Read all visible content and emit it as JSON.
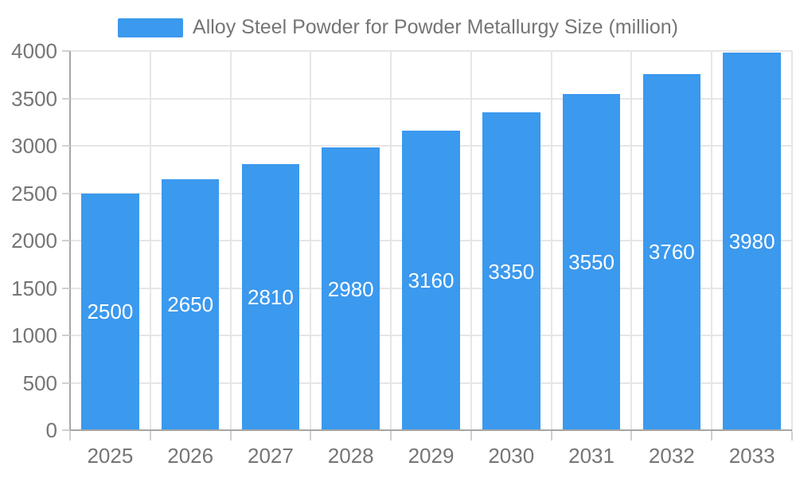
{
  "chart_data": {
    "type": "bar",
    "legend_label": "Alloy Steel Powder for Powder Metallurgy Size (million)",
    "categories": [
      "2025",
      "2026",
      "2027",
      "2028",
      "2029",
      "2030",
      "2031",
      "2032",
      "2033"
    ],
    "values": [
      2500,
      2650,
      2810,
      2980,
      3160,
      3350,
      3550,
      3760,
      3980
    ],
    "xlabel": "",
    "ylabel": "",
    "ylim": [
      0,
      4000
    ],
    "ytick_step": 500,
    "grid": true,
    "legend_position": "top",
    "colors": {
      "bar": "#3b99ee",
      "axis_text": "#757575",
      "grid": "#e6e6e6",
      "axis_line": "#a6a6a6",
      "tick": "#d0d0d0",
      "value_label": "#ffffff"
    }
  }
}
